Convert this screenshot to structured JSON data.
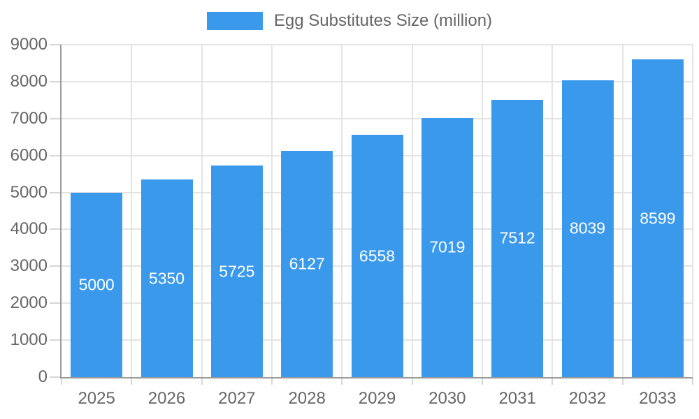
{
  "colors": {
    "bar": "#3b99ec",
    "grid": "#e4e4e4",
    "tick": "#d6d6d6",
    "axis": "#9a9a9a",
    "text": "#666666",
    "bar_label": "#ffffff",
    "background": "#ffffff"
  },
  "chart_data": {
    "type": "bar",
    "title": "Egg Substitutes Size (million)",
    "categories": [
      "2025",
      "2026",
      "2027",
      "2028",
      "2029",
      "2030",
      "2031",
      "2032",
      "2033"
    ],
    "values": [
      5000,
      5350,
      5725,
      6127,
      6558,
      7019,
      7512,
      8039,
      8599
    ],
    "bar_labels": [
      "5000",
      "5350",
      "5725",
      "6127",
      "6558",
      "7019",
      "7512",
      "8039",
      "8599"
    ],
    "xlabel": "",
    "ylabel": "",
    "ylim": [
      0,
      9000
    ],
    "yticks": [
      "0",
      "1000",
      "2000",
      "3000",
      "4000",
      "5000",
      "6000",
      "7000",
      "8000",
      "9000"
    ],
    "grid": true,
    "legend_position": "top",
    "legend_entries": [
      "Egg Substitutes Size (million)"
    ]
  }
}
